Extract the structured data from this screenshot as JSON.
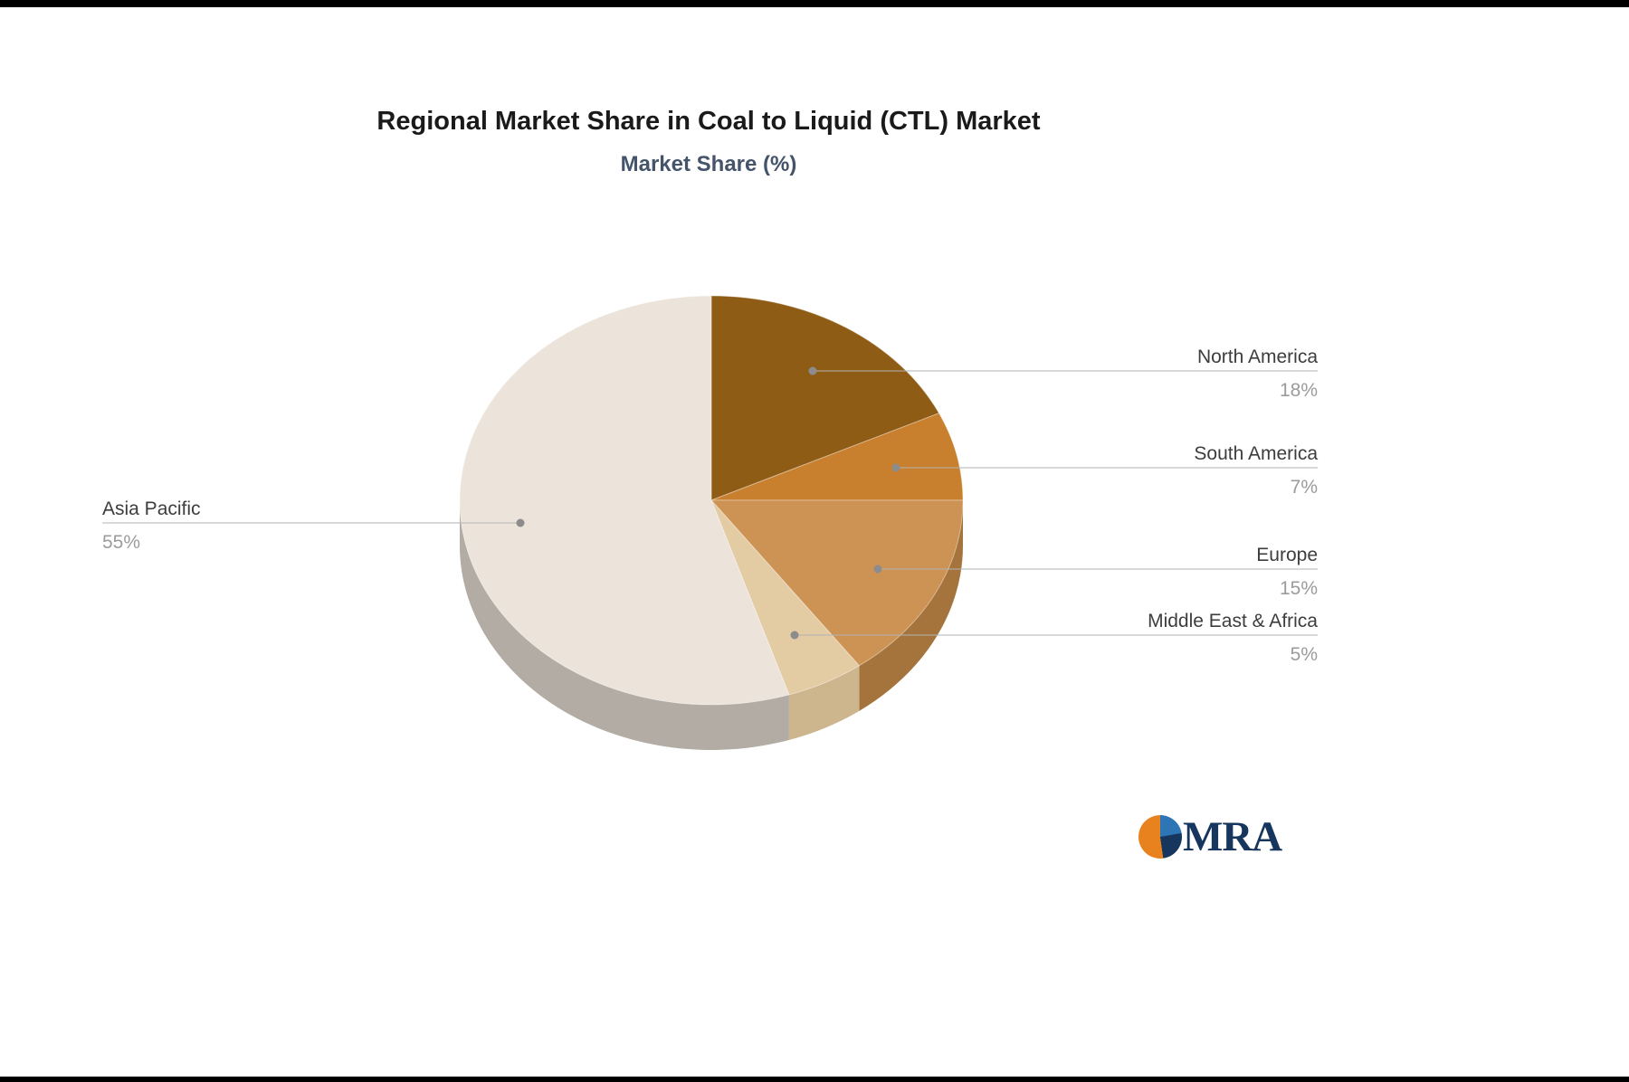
{
  "header": {
    "title": "Regional Market Share in Coal to Liquid (CTL) Market",
    "subtitle": "Market Share (%)"
  },
  "chart_data": {
    "type": "pie",
    "title": "Regional Market Share in Coal to Liquid (CTL) Market",
    "subtitle": "Market Share (%)",
    "unit": "%",
    "effect": "3d",
    "direction": "clockwise",
    "start_angle": "12-o-clock",
    "legend_position": "callout-labels",
    "labels": [
      "North America",
      "South America",
      "Europe",
      "Middle East & Africa",
      "Asia Pacific"
    ],
    "values": [
      18,
      7,
      15,
      5,
      55
    ],
    "value_labels": [
      "18%",
      "7%",
      "15%",
      "5%",
      "55%"
    ],
    "colors": [
      "#8f5c16",
      "#c8802f",
      "#cd9354",
      "#e3cba3",
      "#ece4db"
    ],
    "side_colors": [
      "#70470f",
      "#9c6222",
      "#a5743c",
      "#cdb58d",
      "#b3aca4"
    ],
    "label_color": "#3d3d3d",
    "value_color": "#9b9b9b",
    "line_color": "#b3b3b3",
    "dot_color": "#8c8c8c"
  },
  "logo": {
    "text": "MRA",
    "text_color": "#17365d",
    "icon_colors": {
      "top_right": "#2e75b6",
      "bottom_right": "#17365d",
      "left": "#e8821e"
    }
  }
}
